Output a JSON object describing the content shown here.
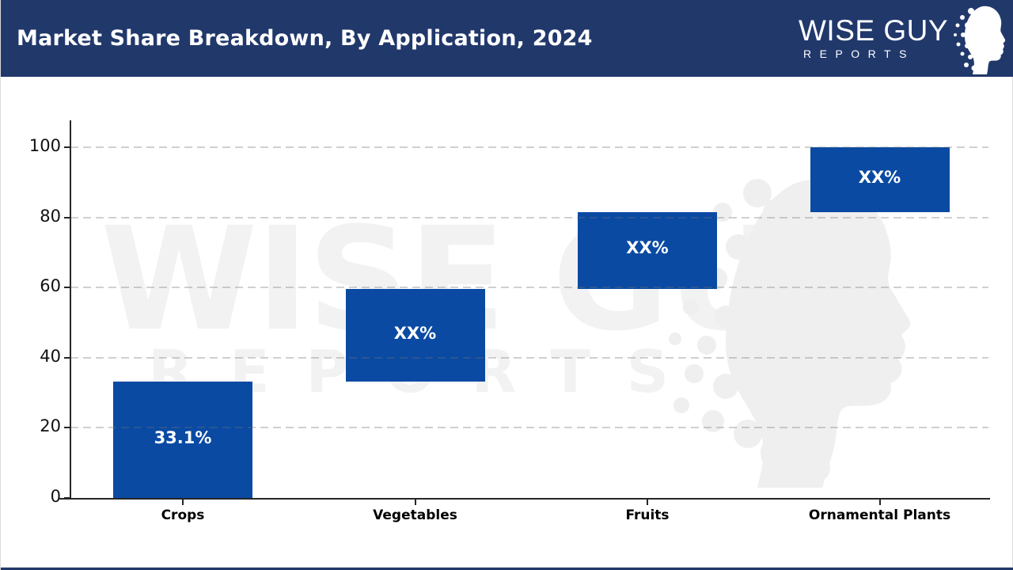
{
  "header": {
    "title": "Market Share Breakdown, By Application, 2024",
    "bg_color": "#21386b",
    "logo": {
      "wordmark": "WISE GUY",
      "subtext": "REPORTS"
    }
  },
  "watermark": {
    "wordmark": "WISE GUY",
    "subtext": "REPORTS"
  },
  "colors": {
    "header_navy": "#21386b",
    "bar_blue": "#0a4aa3",
    "grid_gray": "#d8d8d8",
    "watermark_gray": "#f2f2f2",
    "axis_dark": "#262626"
  },
  "chart_data": {
    "type": "bar",
    "subtype": "waterfall",
    "title": "Market Share Breakdown, By Application, 2024",
    "categories": [
      "Crops",
      "Vegetables",
      "Fruits",
      "Ornamental Plants"
    ],
    "segments": [
      {
        "category": "Crops",
        "start": 0,
        "end": 33.1,
        "value": 33.1,
        "label": "33.1%"
      },
      {
        "category": "Vegetables",
        "start": 33.1,
        "end": 59.6,
        "value": 26.5,
        "label": "XX%"
      },
      {
        "category": "Fruits",
        "start": 59.6,
        "end": 81.6,
        "value": 22.0,
        "label": "XX%"
      },
      {
        "category": "Ornamental Plants",
        "start": 81.6,
        "end": 100,
        "value": 18.4,
        "label": "XX%"
      }
    ],
    "yticks": [
      0,
      20,
      40,
      60,
      80,
      100
    ],
    "ytick_labels": [
      "0",
      "20",
      "40",
      "60",
      "80",
      "100"
    ],
    "ylim": [
      0,
      105
    ],
    "xlabel": "",
    "ylabel": "",
    "grid": "horizontal-dashed-over-bars",
    "legend": false,
    "bar_color": "#0a4aa3",
    "bar_label_color": "#ffffff"
  }
}
